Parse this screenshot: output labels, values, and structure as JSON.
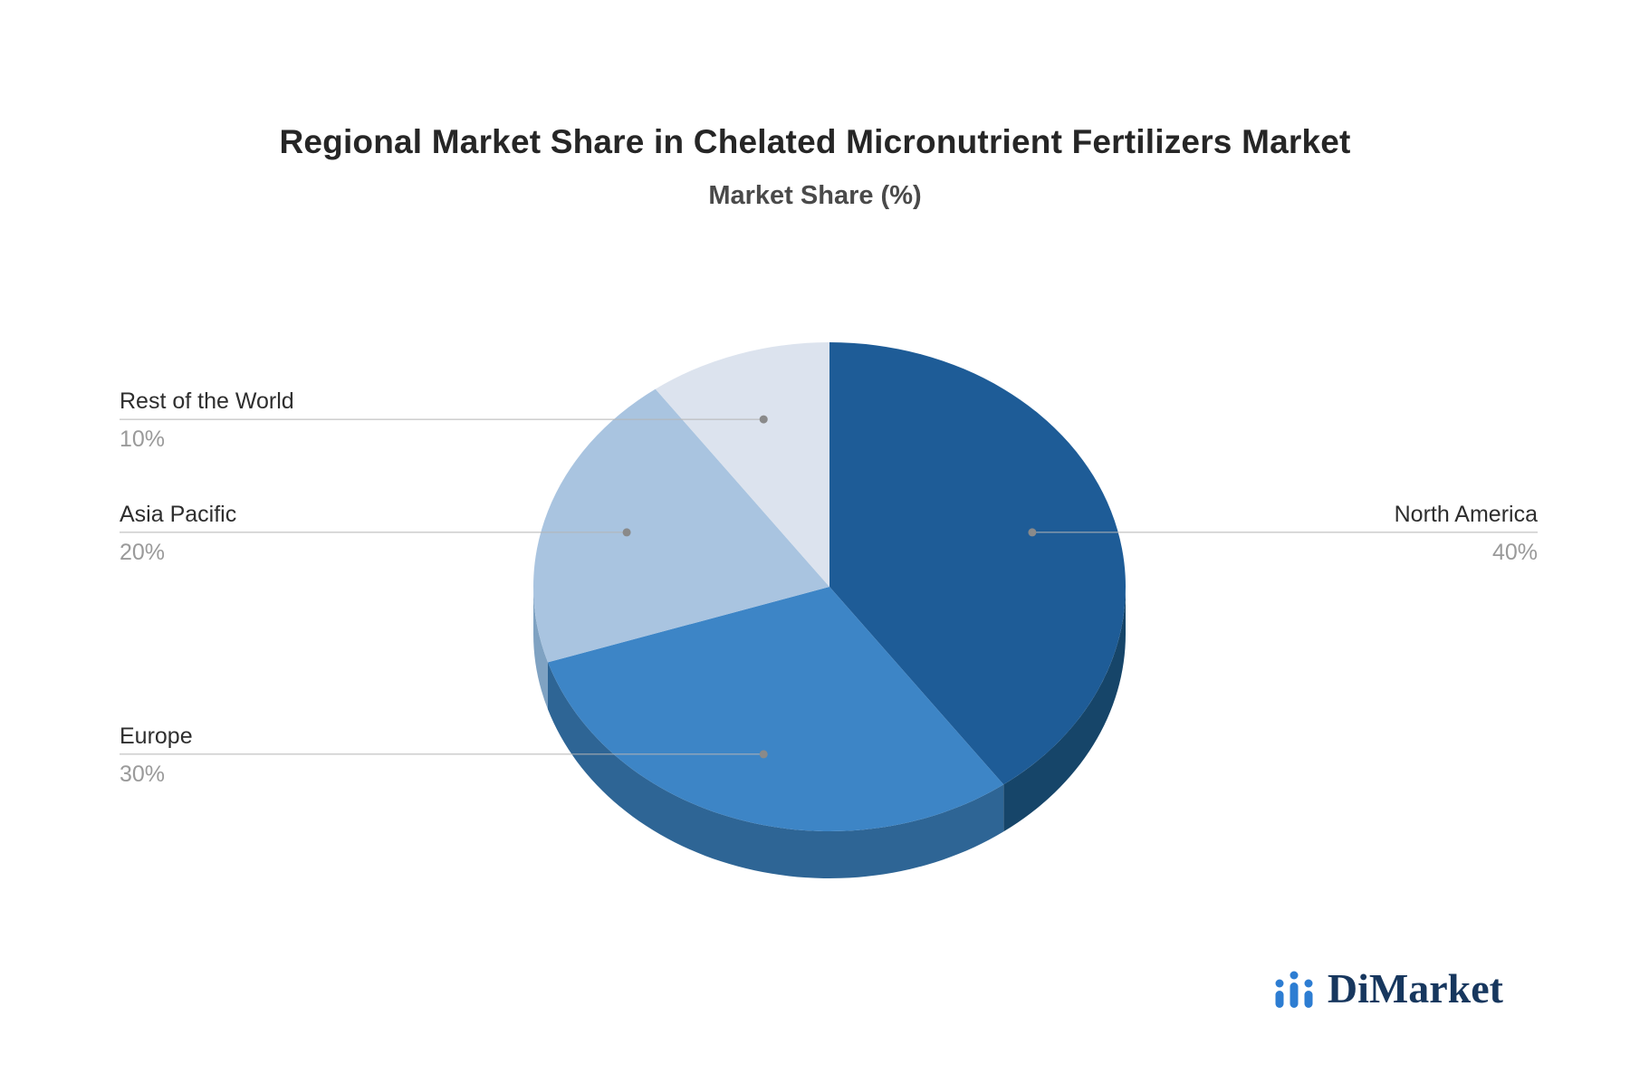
{
  "page": {
    "title": "Regional Market Share in Chelated Micronutrient Fertilizers Market",
    "subtitle": "Market Share (%)"
  },
  "chart_data": {
    "type": "pie",
    "title": "Regional Market Share in Chelated Micronutrient Fertilizers Market",
    "subtitle": "Market Share (%)",
    "unit": "percent",
    "total": 100,
    "start_angle_deg": 0,
    "direction": "clockwise",
    "effect": "3d-depth",
    "legend_position": "callout-labels",
    "slices": [
      {
        "label": "North America",
        "value": 40,
        "display": "40%",
        "color": "#1E5C97",
        "side_color": "#164569"
      },
      {
        "label": "Europe",
        "value": 30,
        "display": "30%",
        "color": "#3D85C6",
        "side_color": "#2E6595"
      },
      {
        "label": "Asia Pacific",
        "value": 20,
        "display": "20%",
        "color": "#A9C4E0",
        "side_color": "#7FA2C2"
      },
      {
        "label": "Rest of the World",
        "value": 10,
        "display": "10%",
        "color": "#DCE3EE",
        "side_color": "#AEBBCE"
      }
    ],
    "style": {
      "leader_line_color": "#b5b5b5",
      "leader_dot_color": "#8a8a8a",
      "label_color": "#2e2e2e",
      "value_color": "#9a9a9a"
    }
  },
  "branding": {
    "logo_text": "DiMarket",
    "logo_icon": "bar-chart-dots-icon",
    "logo_text_color": "#17375e",
    "logo_icon_color": "#2D7DD2"
  }
}
